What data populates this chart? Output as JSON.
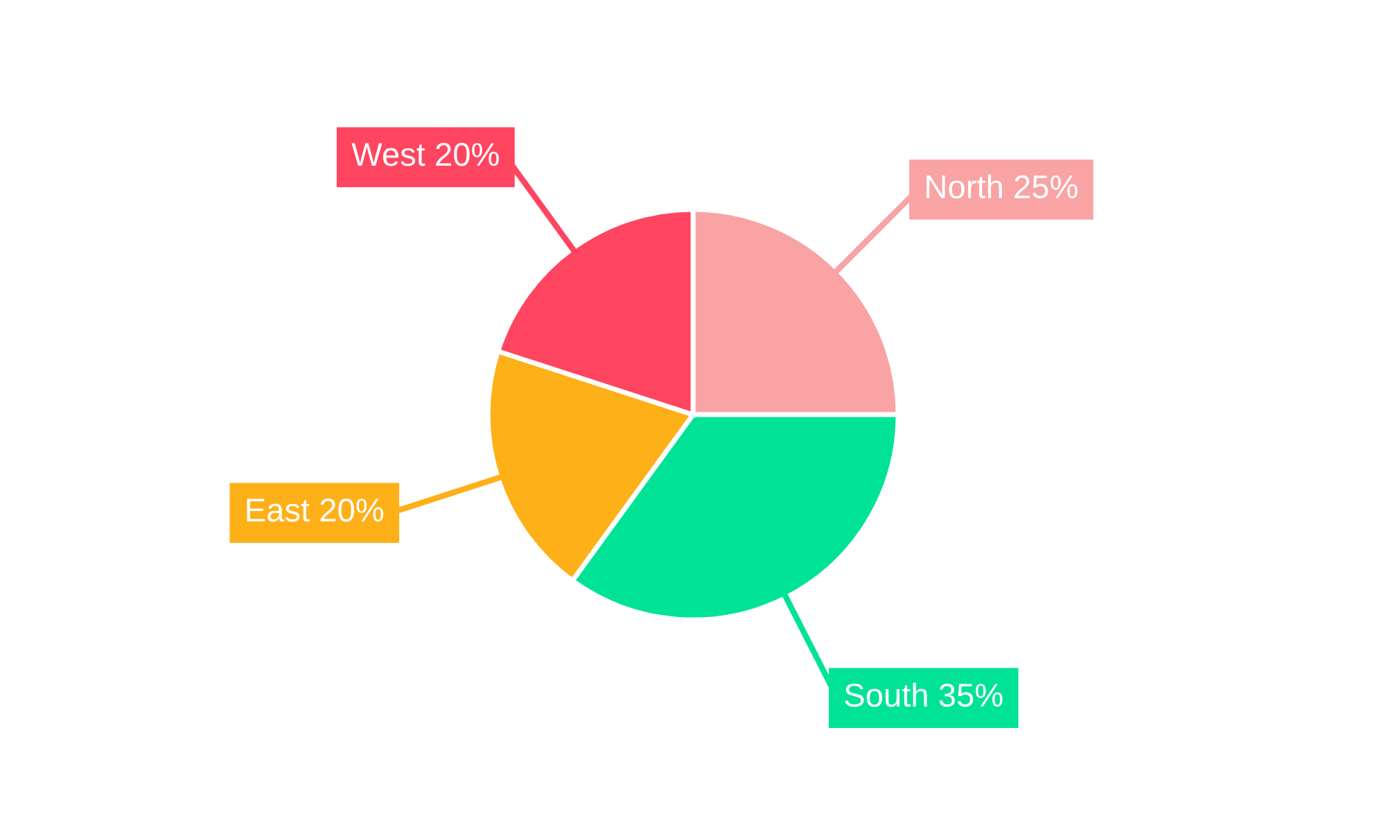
{
  "chart_data": {
    "type": "pie",
    "categories": [
      "North",
      "South",
      "East",
      "West"
    ],
    "values": [
      25,
      35,
      20,
      20
    ],
    "colors": [
      "#f9a3a4",
      "#00e396",
      "#feb019",
      "#ff4560"
    ],
    "value_labels": [
      "25%",
      "35%",
      "20%",
      "20%"
    ],
    "legend": false
  }
}
